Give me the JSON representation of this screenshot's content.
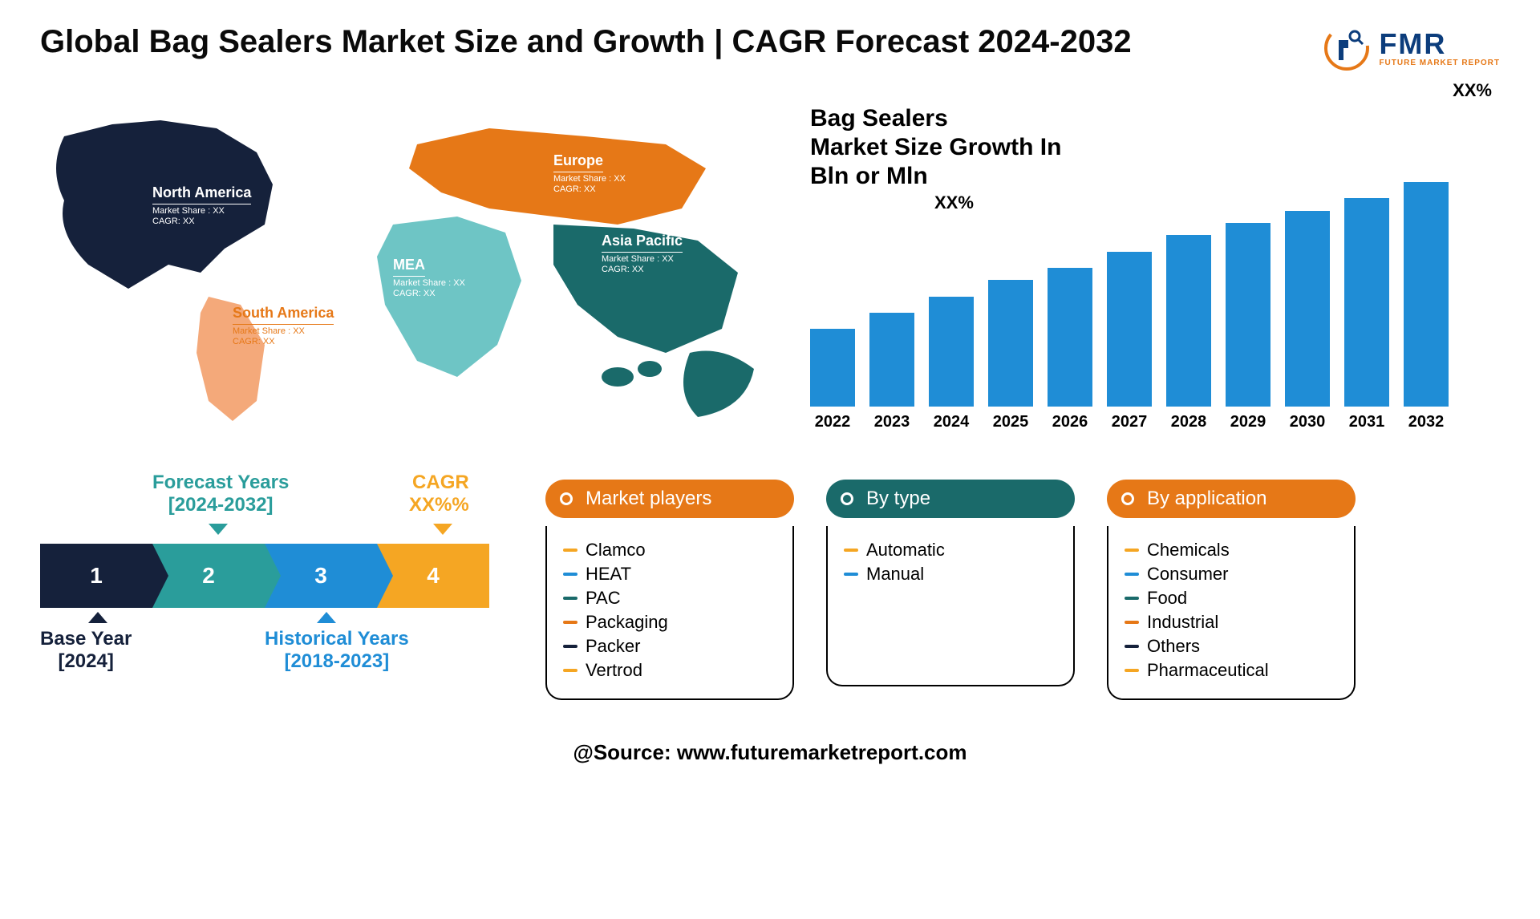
{
  "title": "Global Bag Sealers Market Size and Growth | CAGR Forecast 2024-2032",
  "logo": {
    "fmr": "FMR",
    "sub": "FUTURE MARKET REPORT"
  },
  "colors": {
    "dark_navy": "#15213b",
    "orange": "#e67817",
    "peach": "#f4a97a",
    "teal": "#2a9d9b",
    "teal_dark": "#1a6a6a",
    "light_teal": "#6ec5c5",
    "blue": "#1f8dd6",
    "bar_blue": "#1f8dd6",
    "bar_dark": "#0c3d7c",
    "yellow": "#f5a623",
    "black": "#000000"
  },
  "map": {
    "regions": [
      {
        "name": "North America",
        "share": "Market Share : XX",
        "cagr": "CAGR: XX",
        "color": "#15213b",
        "label_color": "#ffffff"
      },
      {
        "name": "South America",
        "share": "Market Share : XX",
        "cagr": "CAGR: XX",
        "color": "#f4a97a",
        "label_color": "#e67817"
      },
      {
        "name": "Europe",
        "share": "Market Share : XX",
        "cagr": "CAGR: XX",
        "color": "#e67817",
        "label_color": "#ffffff"
      },
      {
        "name": "MEA",
        "share": "Market Share : XX",
        "cagr": "CAGR: XX",
        "color": "#6ec5c5",
        "label_color": "#ffffff"
      },
      {
        "name": "Asia Pacific",
        "share": "Market Share : XX",
        "cagr": "CAGR: XX",
        "color": "#1a6a6a",
        "label_color": "#ffffff"
      }
    ]
  },
  "chart": {
    "title": "Bag Sealers\nMarket Size Growth In\nBln or Mln",
    "annot_left": "XX%",
    "annot_right": "XX%",
    "years": [
      "2022",
      "2023",
      "2024",
      "2025",
      "2026",
      "2027",
      "2028",
      "2029",
      "2030",
      "2031",
      "2032"
    ],
    "values": [
      95,
      115,
      135,
      155,
      170,
      190,
      210,
      225,
      240,
      255,
      275
    ],
    "max": 275,
    "color": "#1f8dd6"
  },
  "timeline": {
    "labels": {
      "forecast": {
        "title": "Forecast Years",
        "sub": "[2024-2032]",
        "color": "#2a9d9b"
      },
      "cagr": {
        "title": "CAGR",
        "sub": "XX%%",
        "color": "#f5a623"
      },
      "base": {
        "title": "Base Year",
        "sub": "[2024]",
        "color": "#15213b"
      },
      "historical": {
        "title": "Historical Years",
        "sub": "[2018-2023]",
        "color": "#1f8dd6"
      }
    },
    "segments": [
      {
        "num": "1",
        "color": "#15213b"
      },
      {
        "num": "2",
        "color": "#2a9d9b"
      },
      {
        "num": "3",
        "color": "#1f8dd6"
      },
      {
        "num": "4",
        "color": "#f5a623"
      }
    ]
  },
  "pills": [
    {
      "title": "Market players",
      "bg": "#e67817",
      "items": [
        {
          "label": "Clamco",
          "color": "#f5a623"
        },
        {
          "label": "HEAT",
          "color": "#1f8dd6"
        },
        {
          "label": "PAC",
          "color": "#1a6a6a"
        },
        {
          "label": "Packaging",
          "color": "#e67817"
        },
        {
          "label": "Packer",
          "color": "#15213b"
        },
        {
          "label": "Vertrod",
          "color": "#f5a623"
        }
      ]
    },
    {
      "title": "By type",
      "bg": "#1a6a6a",
      "items": [
        {
          "label": "Automatic",
          "color": "#f5a623"
        },
        {
          "label": "Manual",
          "color": "#1f8dd6"
        }
      ]
    },
    {
      "title": "By application",
      "bg": "#e67817",
      "items": [
        {
          "label": "Chemicals",
          "color": "#f5a623"
        },
        {
          "label": "Consumer",
          "color": "#1f8dd6"
        },
        {
          "label": "Food",
          "color": "#1a6a6a"
        },
        {
          "label": "Industrial",
          "color": "#e67817"
        },
        {
          "label": "Others",
          "color": "#15213b"
        },
        {
          "label": "Pharmaceutical",
          "color": "#f5a623"
        }
      ]
    }
  ],
  "source": "@Source: www.futuremarketreport.com"
}
